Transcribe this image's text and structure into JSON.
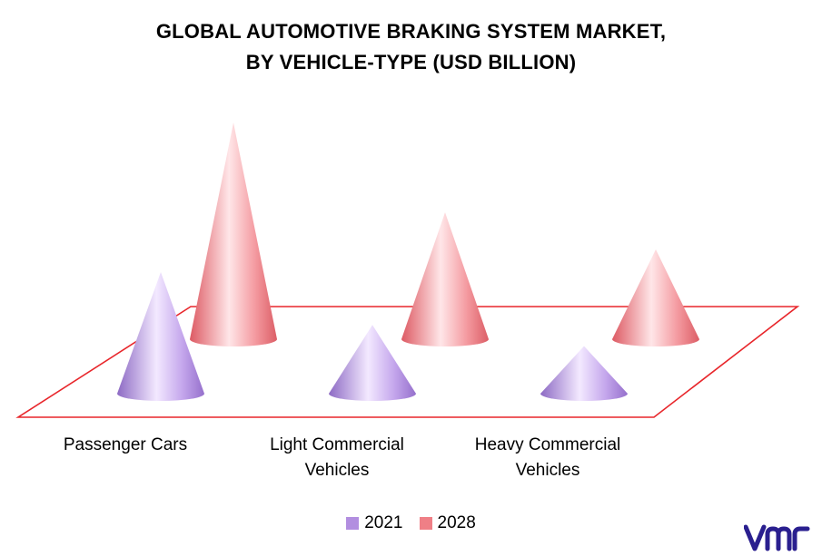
{
  "chart_title": {
    "line1": "GLOBAL AUTOMOTIVE BRAKING SYSTEM MARKET,",
    "line2": "BY VEHICLE-TYPE  (USD BILLION)"
  },
  "chart_data": {
    "type": "bar",
    "style": "3d-cone",
    "categories": [
      "Passenger Cars",
      "Light Commercial Vehicles",
      "Heavy Commercial Vehicles"
    ],
    "category_lines": [
      [
        "Passenger Cars"
      ],
      [
        "Light Commercial",
        "Vehicles"
      ],
      [
        "Heavy Commercial",
        "Vehicles"
      ]
    ],
    "series": [
      {
        "name": "2021",
        "values": [
          23,
          13,
          9
        ],
        "color": "#b28ee0"
      },
      {
        "name": "2028",
        "values": [
          41,
          24,
          17
        ],
        "color": "#ef7f86"
      }
    ],
    "ylim": [
      0,
      45
    ],
    "grid": false,
    "legend_position": "bottom"
  },
  "legend": {
    "items": [
      {
        "label": "2021",
        "color": "#b28ee0"
      },
      {
        "label": "2028",
        "color": "#ef7f86"
      }
    ]
  },
  "brand": {
    "icon": "vmr-logo-icon",
    "color": "#2a1f8f"
  }
}
